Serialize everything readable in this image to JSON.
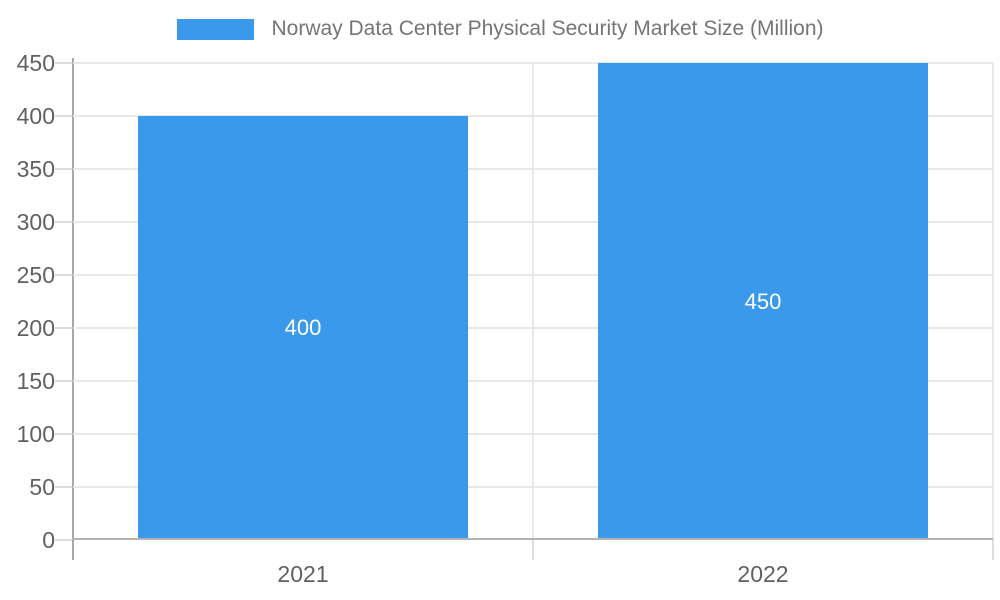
{
  "legend": {
    "label": "Norway Data Center Physical Security Market Size (Million)",
    "swatch_color": "#3B99EC"
  },
  "chart_data": {
    "type": "bar",
    "title": "Norway Data Center Physical Security Market Size (Million)",
    "categories": [
      "2021",
      "2022"
    ],
    "values": [
      400,
      450
    ],
    "bar_labels": [
      "400",
      "450"
    ],
    "xlabel": "",
    "ylabel": "",
    "ylim": [
      0,
      450
    ],
    "ytick_step": 50,
    "ytick_labels": [
      "0",
      "50",
      "100",
      "150",
      "200",
      "250",
      "300",
      "350",
      "400",
      "450"
    ],
    "grid": true,
    "legend_position": "top"
  },
  "colors": {
    "bar": "#3B99EC",
    "bar_label": "#FFFFFF",
    "gridline": "#E8E8E8",
    "axis_line": "#AAAAAA",
    "tick_label": "#616161",
    "legend_text": "#757575",
    "background": "#FFFFFF"
  }
}
